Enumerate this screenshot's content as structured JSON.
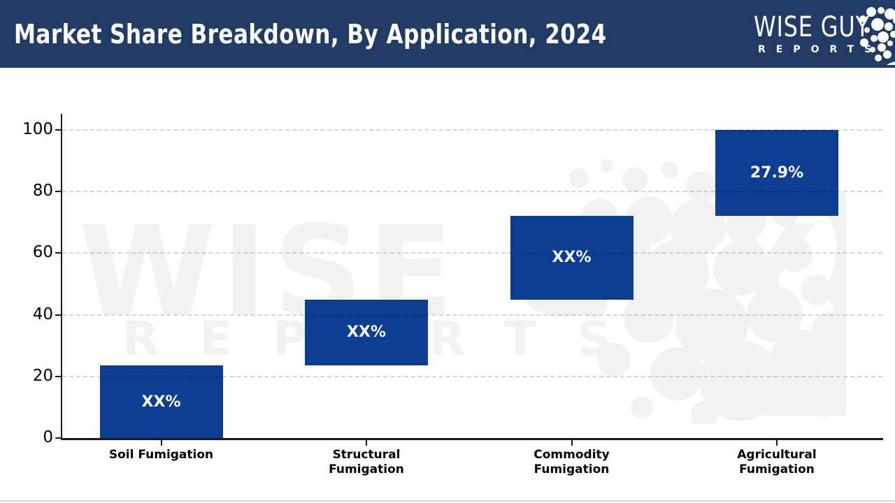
{
  "header": {
    "title": "Market Share Breakdown, By Application, 2024",
    "logo": {
      "line1": "WISE GUY",
      "line2": "REPORTS"
    }
  },
  "watermark": {
    "line1": "WISE GUY",
    "line2": "REPORTS"
  },
  "chart_data": {
    "type": "bar",
    "subtype": "floating-waterfall",
    "title": "Market Share Breakdown, By Application, 2024",
    "categories": [
      {
        "name": "Soil Fumigation",
        "lines": [
          "Soil Fumigation"
        ]
      },
      {
        "name": "Structural Fumigation",
        "lines": [
          "Structural",
          "Fumigation"
        ]
      },
      {
        "name": "Commodity Fumigation",
        "lines": [
          "Commodity",
          "Fumigation"
        ]
      },
      {
        "name": "Agricultural Fumigation",
        "lines": [
          "Agricultural",
          "Fumigation"
        ]
      }
    ],
    "bars": [
      {
        "category": "Soil Fumigation",
        "from": 0,
        "to": 23.5,
        "label": "XX%"
      },
      {
        "category": "Structural Fumigation",
        "from": 23.5,
        "to": 45.0,
        "label": "XX%"
      },
      {
        "category": "Commodity Fumigation",
        "from": 45.0,
        "to": 72.1,
        "label": "XX%"
      },
      {
        "category": "Agricultural Fumigation",
        "from": 72.1,
        "to": 100,
        "label": "27.9%"
      }
    ],
    "xlabel": "",
    "ylabel": "",
    "ylim": [
      0,
      100
    ],
    "yticks": [
      0,
      20,
      40,
      60,
      80,
      100
    ],
    "grid": "horizontal-dashed",
    "legend": "none",
    "bar_color": "#0b3e92",
    "bar_label_color": "#ffffff",
    "header_color": "#213a66",
    "watermark_color": "#f2f2f3"
  }
}
